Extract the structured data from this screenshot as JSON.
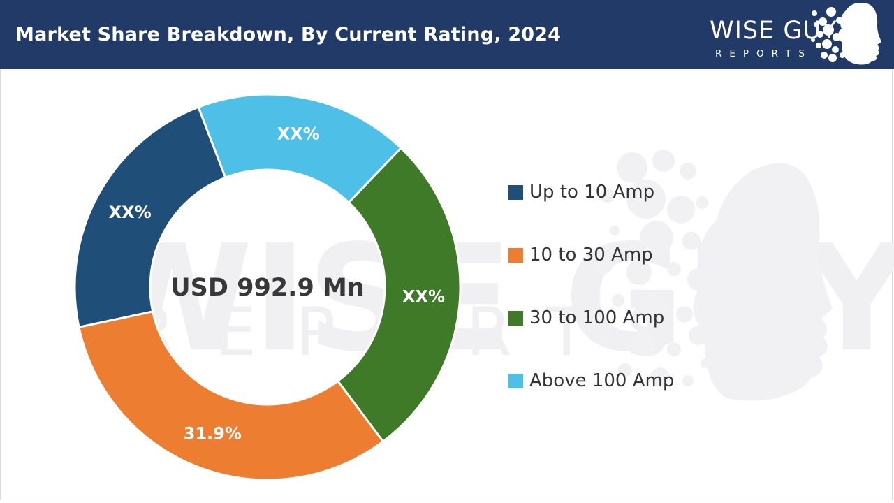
{
  "header": {
    "title": "Market Share Breakdown, By Current Rating, 2024",
    "logo": {
      "brand_line1": "WISE GUY",
      "brand_line2": "REPORTS"
    }
  },
  "watermark": {
    "line1": "WISE GUY",
    "line2": "REPORTS"
  },
  "chart_data": {
    "type": "pie",
    "subtype": "donut",
    "title": "Market Share Breakdown, By Current Rating, 2024",
    "center_label": "USD 992.9 Mn",
    "start_angle_deg": 111,
    "direction": "counterclockwise",
    "legend_position": "right",
    "slices": [
      {
        "category": "Up to 10 Amp",
        "value_pct": 22.5,
        "display_label": "XX%",
        "color": "#1f4e79"
      },
      {
        "category": "10 to 30 Amp",
        "value_pct": 31.9,
        "display_label": "31.9%",
        "color": "#ed7d31"
      },
      {
        "category": "30 to 100 Amp",
        "value_pct": 27.6,
        "display_label": "XX%",
        "color": "#3f7a28"
      },
      {
        "category": "Above 100 Amp",
        "value_pct": 18.0,
        "display_label": "XX%",
        "color": "#4ec0e8"
      }
    ]
  },
  "colors": {
    "header_bg": "#223a67",
    "slice_separator": "#ffffff",
    "center_text": "#383838",
    "legend_text": "#333333",
    "frame_border": "#d9d9d9",
    "watermark": "#f0f0f2"
  }
}
